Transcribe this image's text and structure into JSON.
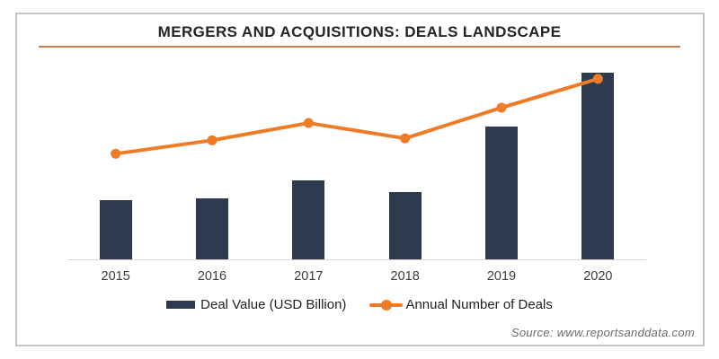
{
  "header": {
    "title": "MERGERS AND ACQUISITIONS: DEALS LANDSCAPE"
  },
  "source": "Source: www.reportsanddata.com",
  "colors": {
    "bar": "#2e3b4e",
    "line": "#ee7c26",
    "title_underline": "#d57b4b",
    "frame_border": "#c3c3c3",
    "axis_line": "#d9d9d9",
    "tick_text": "#3d3d3d"
  },
  "chart_data": {
    "type": "bar",
    "subtype": "combo-bar-line",
    "title": "MERGERS AND ACQUISITIONS: DEALS LANDSCAPE",
    "categories": [
      "2015",
      "2016",
      "2017",
      "2018",
      "2019",
      "2020"
    ],
    "series": [
      {
        "name": "Deal Value (USD Billion)",
        "type": "bar",
        "color": "#2e3b4e",
        "values": [
          31,
          32,
          41,
          35,
          69,
          97
        ]
      },
      {
        "name": "Annual Number of Deals",
        "type": "line",
        "color": "#ee7c26",
        "values": [
          55,
          62,
          71,
          63,
          79,
          94
        ]
      }
    ],
    "xlabel": "",
    "ylabel": "",
    "ylim": [
      0,
      100
    ],
    "y_axis_visible": false,
    "gridlines": false,
    "legend_position": "bottom",
    "note": "No y-axis tick labels shown in source image; series values are relative units estimated from pixel heights (0-100 scale)."
  }
}
